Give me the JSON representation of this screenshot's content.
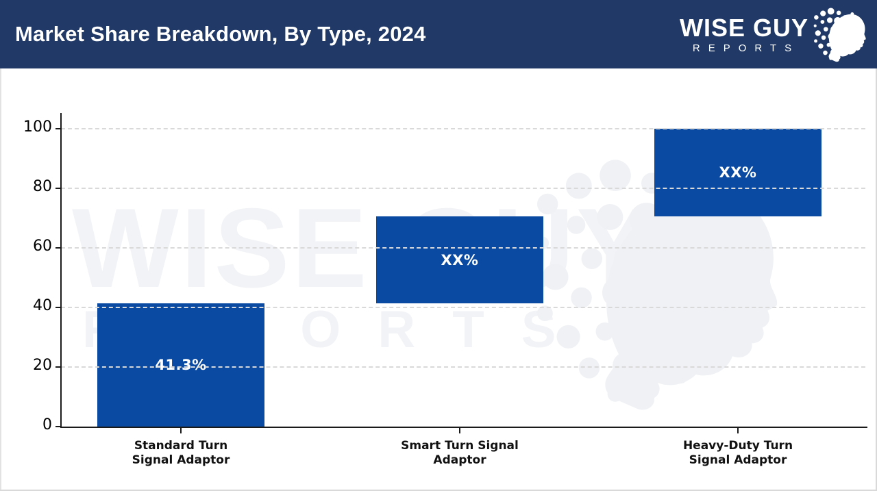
{
  "header": {
    "title": "Market Share Breakdown, By Type, 2024",
    "brand": {
      "line1": "WISE GUY",
      "line2": "REPORTS"
    }
  },
  "watermark": {
    "line1": "WISE GUY",
    "line2": "REPORTS"
  },
  "chart_data": {
    "type": "bar",
    "subtype": "floating-segment (stacked share breakdown)",
    "title": "Market Share Breakdown, By Type, 2024",
    "categories": [
      "Standard Turn Signal Adaptor",
      "Smart Turn Signal Adaptor",
      "Heavy-Duty Turn Signal Adaptor"
    ],
    "bars": [
      {
        "category_lines": [
          "Standard Turn",
          "Signal Adaptor"
        ],
        "label": "41.3%",
        "from": 0,
        "to": 41.3
      },
      {
        "category_lines": [
          "Smart Turn Signal",
          "Adaptor"
        ],
        "label": "XX%",
        "from": 41.3,
        "to": 70.5
      },
      {
        "category_lines": [
          "Heavy-Duty Turn",
          "Signal Adaptor"
        ],
        "label": "XX%",
        "from": 70.5,
        "to": 100
      }
    ],
    "ylim": [
      0,
      100
    ],
    "yticks": [
      0,
      20,
      40,
      60,
      80,
      100
    ],
    "grid": "horizontal-dashed",
    "legend": null,
    "bar_color": "#0b4aa2"
  },
  "colors": {
    "header_bg": "#213966",
    "bar": "#0b4aa2",
    "gridline": "#d9d9d9",
    "axis": "#1a1a1a",
    "watermark": "#f2f3f6",
    "frame": "#d9d9d9"
  }
}
